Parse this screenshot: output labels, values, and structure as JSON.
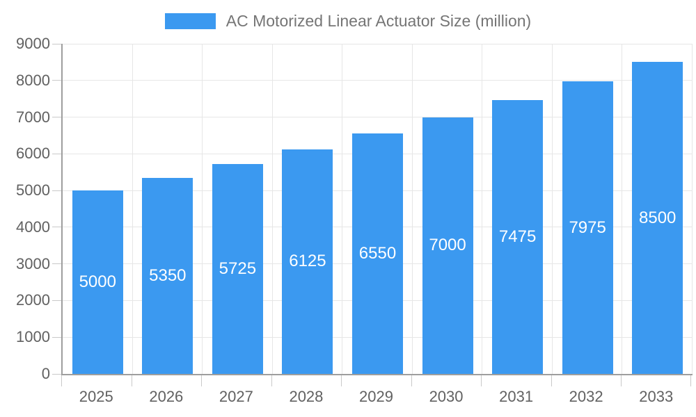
{
  "legend": {
    "label": "AC Motorized Linear Actuator Size (million)",
    "swatch_color": "#3b99f0"
  },
  "chart_data": {
    "type": "bar",
    "title": "AC Motorized Linear Actuator Size (million)",
    "series_name": "AC Motorized Linear Actuator Size (million)",
    "categories": [
      "2025",
      "2026",
      "2027",
      "2028",
      "2029",
      "2030",
      "2031",
      "2032",
      "2033"
    ],
    "values": [
      5000,
      5350,
      5725,
      6125,
      6550,
      7000,
      7475,
      7975,
      8500
    ],
    "xlabel": "",
    "ylabel": "",
    "ylim": [
      0,
      9000
    ],
    "yticks": [
      0,
      1000,
      2000,
      3000,
      4000,
      5000,
      6000,
      7000,
      8000,
      9000
    ],
    "grid": true,
    "legend_position": "top",
    "bar_color": "#3b99f0",
    "bar_label_color": "#ffffff",
    "axis_text_color": "#616161",
    "gridline_color": "#e6e6e6",
    "axis_line_color": "#9e9e9e"
  }
}
